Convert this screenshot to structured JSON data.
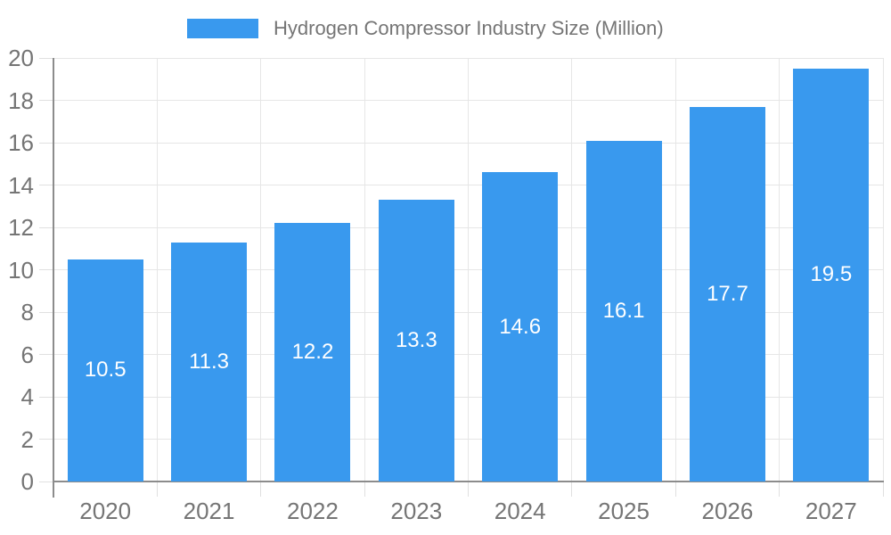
{
  "legend": {
    "label": "Hydrogen Compressor Industry Size (Million)"
  },
  "chart_data": {
    "type": "bar",
    "title": "Hydrogen Compressor Industry Size (Million)",
    "categories": [
      "2020",
      "2021",
      "2022",
      "2023",
      "2024",
      "2025",
      "2026",
      "2027"
    ],
    "series": [
      {
        "name": "Hydrogen Compressor Industry Size (Million)",
        "values": [
          10.5,
          11.3,
          12.2,
          13.3,
          14.6,
          16.1,
          17.7,
          19.5
        ],
        "value_labels": [
          "10.5",
          "11.3",
          "12.2",
          "13.3",
          "14.6",
          "16.1",
          "17.7",
          "19.5"
        ]
      }
    ],
    "xlabel": "",
    "ylabel": "",
    "ylim": [
      0,
      20
    ],
    "yticks": [
      "0",
      "2",
      "4",
      "6",
      "8",
      "10",
      "12",
      "14",
      "16",
      "18",
      "20"
    ],
    "grid": true,
    "legend_position": "top",
    "colors": {
      "bar": "#3999EE",
      "value_label": "#ffffff",
      "axis_text": "#757575",
      "axis_line": "#8c8c8c",
      "gridline": "#e6e6e6",
      "minor_tick": "#e0e0e0"
    }
  }
}
